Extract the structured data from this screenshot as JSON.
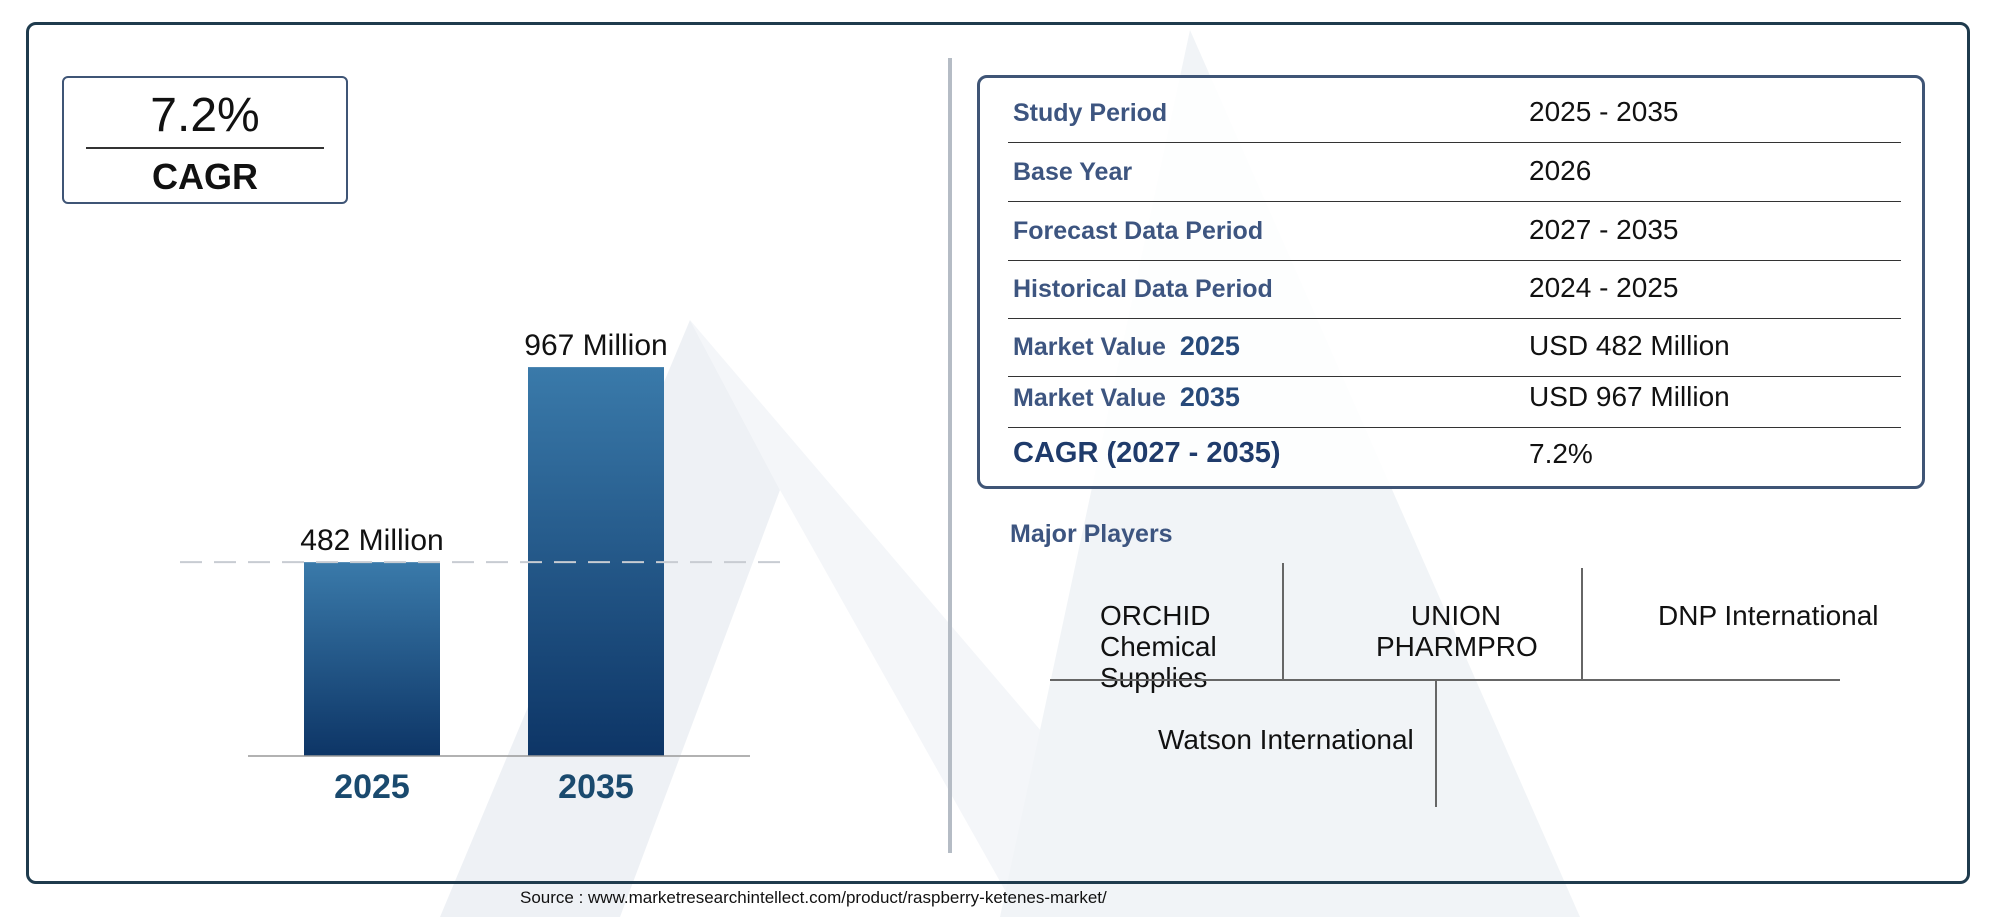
{
  "cagr_box": {
    "value": "7.2%",
    "label": "CAGR"
  },
  "chart_data": {
    "type": "bar",
    "categories": [
      "2025",
      "2035"
    ],
    "values": [
      482,
      967
    ],
    "data_labels": [
      "482 Million",
      "967 Million"
    ],
    "title": "",
    "xlabel": "",
    "ylabel": "",
    "ylim": [
      0,
      1000
    ],
    "grid": false,
    "reference_line": {
      "value": 482,
      "style": "dashed"
    },
    "colors": {
      "bar_top": "#3a7aaa",
      "bar_bottom": "#0d3566",
      "category_label": "#1a4a6e",
      "reference_line": "#c8ccd2"
    }
  },
  "info_table": [
    {
      "label": "Study Period",
      "year": "",
      "value": "2025 - 2035"
    },
    {
      "label": "Base Year",
      "year": "",
      "value": "2026"
    },
    {
      "label": "Forecast Data Period",
      "year": "",
      "value": "2027 - 2035"
    },
    {
      "label": "Historical Data Period",
      "year": "",
      "value": "2024 - 2025"
    },
    {
      "label": "Market Value",
      "year": "2025",
      "value": "USD 482 Million"
    },
    {
      "label": "Market Value",
      "year": "2035",
      "value": "USD 967 Million"
    },
    {
      "label": "CAGR (2027 - 2035)",
      "year": "",
      "value": "7.2%"
    }
  ],
  "players": {
    "title": "Major Players",
    "items": [
      "ORCHID Chemical Supplies",
      "UNION PHARMPRO",
      "DNP International",
      "Watson International"
    ]
  },
  "source": "Source : www.marketresearchintellect.com/product/raspberry-ketenes-market/",
  "colors": {
    "frame": "#1f3b4d",
    "accent_text": "#3d5580",
    "watermark": "#eef1f5"
  }
}
